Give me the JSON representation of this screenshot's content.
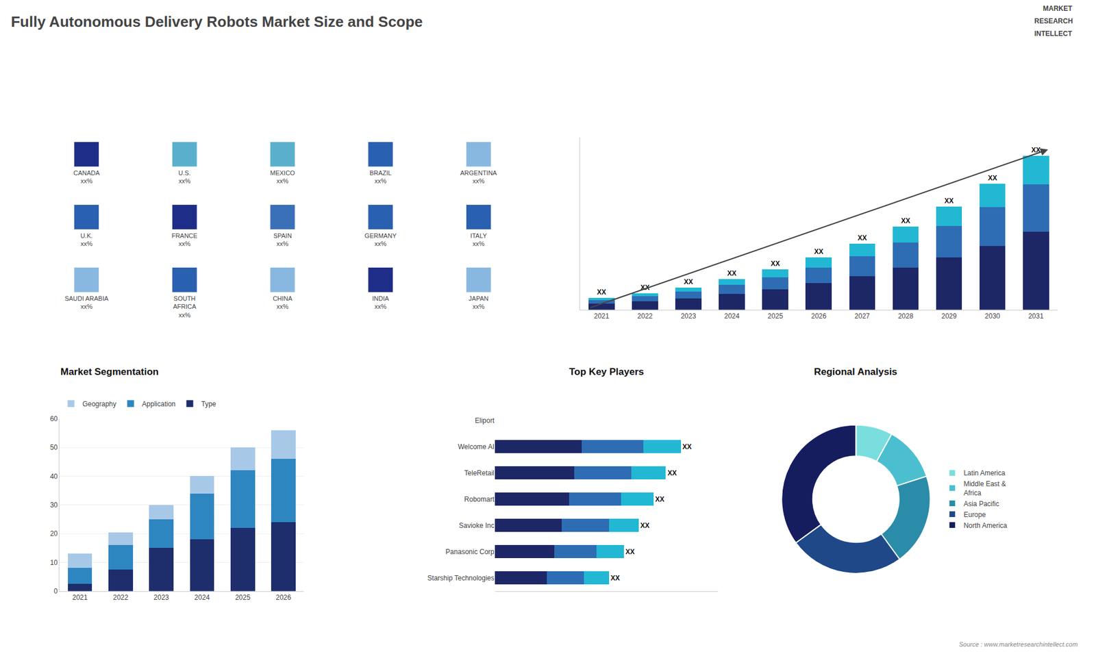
{
  "title": "Fully Autonomous Delivery Robots Market Size and Scope",
  "annotations": [
    "MARKET",
    "RESEARCH",
    "INTELLECT",
    "Source : www.marketresearchintellect.com"
  ],
  "chart_data": [
    {
      "type": "map",
      "categories": [
        "CANADA",
        "U.S.",
        "MEXICO",
        "BRAZIL",
        "ARGENTINA",
        "U.K.",
        "FRANCE",
        "SPAIN",
        "GERMANY",
        "ITALY",
        "SAUDI ARABIA",
        "SOUTH\nAFRICA",
        "CHINA",
        "INDIA",
        "JAPAN"
      ],
      "value_labels": [
        "xx%",
        "xx%",
        "xx%",
        "xx%",
        "xx%",
        "xx%",
        "xx%",
        "xx%",
        "xx%",
        "xx%",
        "xx%",
        "xx%",
        "xx%",
        "xx%",
        "xx%"
      ],
      "colors": [
        "#1e2d87",
        "#5ab0cc",
        "#5ab0cc",
        "#2a60b0",
        "#88b8e0",
        "#2a60b0",
        "#1e2d87",
        "#3a70b8",
        "#2a60b0",
        "#2a60b0",
        "#88b8e0",
        "#2a60b0",
        "#88b8e0",
        "#1e2d87",
        "#88b8e0"
      ]
    },
    {
      "type": "bar",
      "stacked": true,
      "categories": [
        "2021",
        "2022",
        "2023",
        "2024",
        "2025",
        "2026",
        "2027",
        "2028",
        "2029",
        "2030",
        "2031"
      ],
      "series": [
        {
          "color": "#1e2766",
          "values": [
            1.0,
            1.4,
            1.9,
            2.6,
            3.4,
            4.4,
            5.6,
            7.0,
            8.7,
            10.6,
            13.0
          ]
        },
        {
          "color": "#2e6db4",
          "values": [
            0.6,
            0.8,
            1.1,
            1.5,
            2.0,
            2.6,
            3.3,
            4.2,
            5.2,
            6.4,
            7.8
          ]
        },
        {
          "color": "#22b8d4",
          "values": [
            0.4,
            0.5,
            0.7,
            1.0,
            1.3,
            1.7,
            2.1,
            2.6,
            3.2,
            3.9,
            4.8
          ],
          "value_labels": [
            "XX",
            "XX",
            "XX",
            "XX",
            "XX",
            "XX",
            "XX",
            "XX",
            "XX",
            "XX",
            "XX"
          ]
        }
      ],
      "data_labels": true,
      "ylim": [
        0,
        28.6
      ],
      "tick_labels": "x",
      "grid": false
    },
    {
      "type": "bar",
      "title": "Market Segmentation",
      "stacked": true,
      "categories": [
        "2021",
        "2022",
        "2023",
        "2024",
        "2025",
        "2026"
      ],
      "series": [
        {
          "name": "Type",
          "color": "#1e2d6b",
          "values": [
            2.5,
            7.5,
            15.0,
            18.0,
            22.0,
            24.0
          ]
        },
        {
          "name": "Application",
          "color": "#2e86c1",
          "values": [
            5.5,
            8.5,
            10.0,
            16.0,
            20.0,
            22.0
          ]
        },
        {
          "name": "Geography",
          "color": "#a8c8e8",
          "values": [
            5.0,
            4.5,
            5.0,
            6.0,
            8.0,
            10.0
          ]
        }
      ],
      "ylim": [
        0,
        60
      ],
      "yticks": [
        0,
        10,
        20,
        30,
        40,
        50,
        60
      ],
      "grid": true,
      "legend": "top"
    },
    {
      "type": "bar",
      "title": "Top Key Players",
      "orientation": "horizontal",
      "stacked": true,
      "categories": [
        "Eliport",
        "Welcome AI",
        "TeleRetail",
        "Robomart",
        "Savioke Inc",
        "Panasonic Corp",
        "Starship Technologies"
      ],
      "series": [
        {
          "color": "#1e2766",
          "values": [
            0,
            3.5,
            3.2,
            3.0,
            2.7,
            2.4,
            2.1
          ]
        },
        {
          "color": "#2e6db4",
          "values": [
            0,
            2.5,
            2.3,
            2.1,
            1.9,
            1.7,
            1.5
          ]
        },
        {
          "color": "#22b8d4",
          "values": [
            0,
            1.5,
            1.4,
            1.3,
            1.2,
            1.1,
            1.0
          ],
          "value_labels": [
            null,
            "XX",
            "XX",
            "XX",
            "XX",
            "XX",
            "XX"
          ]
        }
      ],
      "data_labels": true,
      "xlim": [
        0,
        9
      ],
      "tick_labels": "y",
      "grid": false
    },
    {
      "type": "pie",
      "title": "Regional Analysis",
      "categories": [
        "Latin America",
        "Middle East &\nAfrica",
        "Asia Pacific",
        "Europe",
        "North America"
      ],
      "values": [
        8,
        12,
        20,
        25,
        35
      ],
      "colors": [
        "#7adede",
        "#4bbfcf",
        "#2a8ca8",
        "#1e4888",
        "#151d5e"
      ],
      "legend": "right"
    }
  ]
}
